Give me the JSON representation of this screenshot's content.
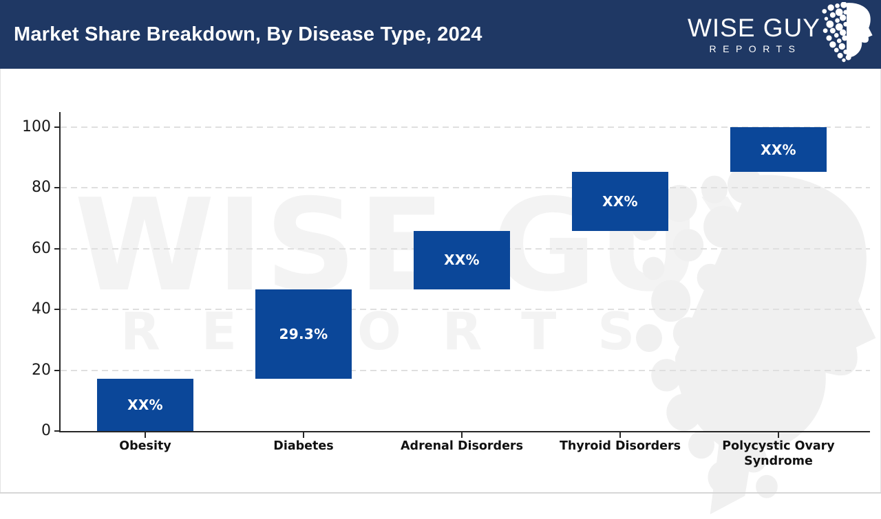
{
  "header": {
    "title": "Market Share Breakdown, By Disease Type, 2024",
    "background_color": "#1f3864",
    "logo": {
      "line1": "WISE GUY",
      "line2": "REPORTS",
      "face_icon": "wiseguy-face-icon"
    }
  },
  "watermark": {
    "line1": "WISE GUY",
    "line2": "REPORTS",
    "face_icon": "wiseguy-face-watermark-icon"
  },
  "chart_data": {
    "type": "bar",
    "subtype": "waterfall",
    "title": "Market Share Breakdown, By Disease Type, 2024",
    "xlabel": "",
    "ylabel": "",
    "categories": [
      "Obesity",
      "Diabetes",
      "Adrenal Disorders",
      "Thyroid Disorders",
      "Polycystic Ovary Syndrome"
    ],
    "series": [
      {
        "name": "Market Share (%)",
        "segments": [
          {
            "category": "Obesity",
            "start": 0,
            "end": 17.3,
            "label": "XX%"
          },
          {
            "category": "Diabetes",
            "start": 17.3,
            "end": 46.6,
            "label": "29.3%"
          },
          {
            "category": "Adrenal Disorders",
            "start": 46.6,
            "end": 65.9,
            "label": "XX%"
          },
          {
            "category": "Thyroid Disorders",
            "start": 65.9,
            "end": 85.2,
            "label": "XX%"
          },
          {
            "category": "Polycystic Ovary Syndrome",
            "start": 85.2,
            "end": 100,
            "label": "XX%"
          }
        ]
      }
    ],
    "ylim": [
      0,
      105
    ],
    "yticks": [
      0,
      20,
      40,
      60,
      80,
      100
    ],
    "grid": "horizontal-dashed",
    "legend": "none",
    "bar_color": "#0b4799",
    "bar_label_color": "#ffffff",
    "axis_color": "#262626",
    "gridline_color": "#dfdfdf"
  }
}
